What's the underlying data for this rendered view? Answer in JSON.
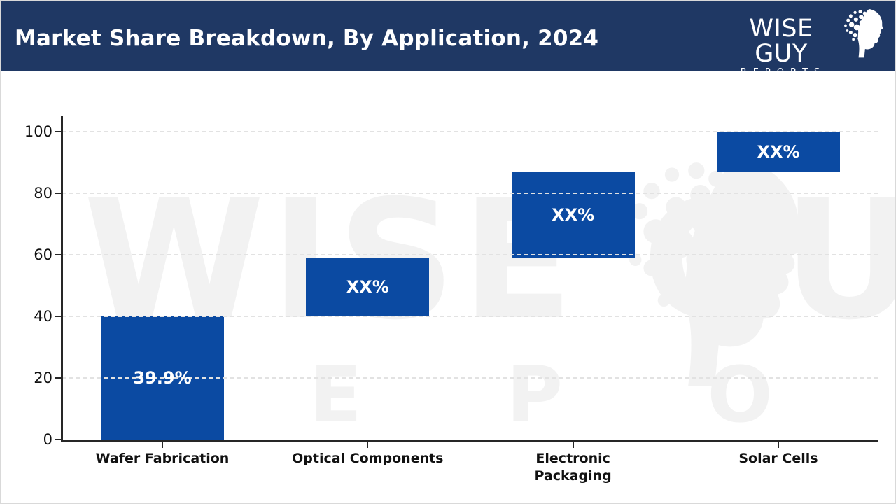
{
  "header": {
    "title": "Market Share Breakdown, By Application, 2024",
    "logo": {
      "line1": "WISE GUY",
      "line2": "REPORTS"
    }
  },
  "watermark": {
    "line1": "WISE GUY",
    "line2": "R E P O R T S"
  },
  "chart_data": {
    "type": "bar",
    "subtype": "waterfall",
    "title": "Market Share Breakdown, By Application, 2024",
    "xlabel": "",
    "ylabel": "",
    "categories": [
      "Wafer Fabrication",
      "Optical Components",
      "Electronic Packaging",
      "Solar Cells"
    ],
    "category_lines": [
      [
        "Wafer Fabrication"
      ],
      [
        "Optical Components"
      ],
      [
        "Electronic",
        "Packaging"
      ],
      [
        "Solar Cells"
      ]
    ],
    "series": [
      {
        "name": "Market Share (%)",
        "segments": [
          {
            "category": "Wafer Fabrication",
            "start": 0,
            "end": 39.9,
            "label": "39.9%"
          },
          {
            "category": "Optical Components",
            "start": 40,
            "end": 59,
            "label": "XX%"
          },
          {
            "category": "Electronic Packaging",
            "start": 59,
            "end": 87,
            "label": "XX%"
          },
          {
            "category": "Solar Cells",
            "start": 87,
            "end": 100,
            "label": "XX%"
          }
        ]
      }
    ],
    "yticks": [
      0,
      20,
      40,
      60,
      80,
      100
    ],
    "ylim": [
      0,
      105
    ],
    "grid": "horizontal-dashed",
    "legend": "none",
    "bar_color": "#0b4aa2",
    "bar_label_color": "#ffffff",
    "axis_color": "#262626",
    "gridline_color": "#e2e2e2",
    "header_bg": "#1f3864",
    "watermark_color": "#f2f2f2"
  }
}
